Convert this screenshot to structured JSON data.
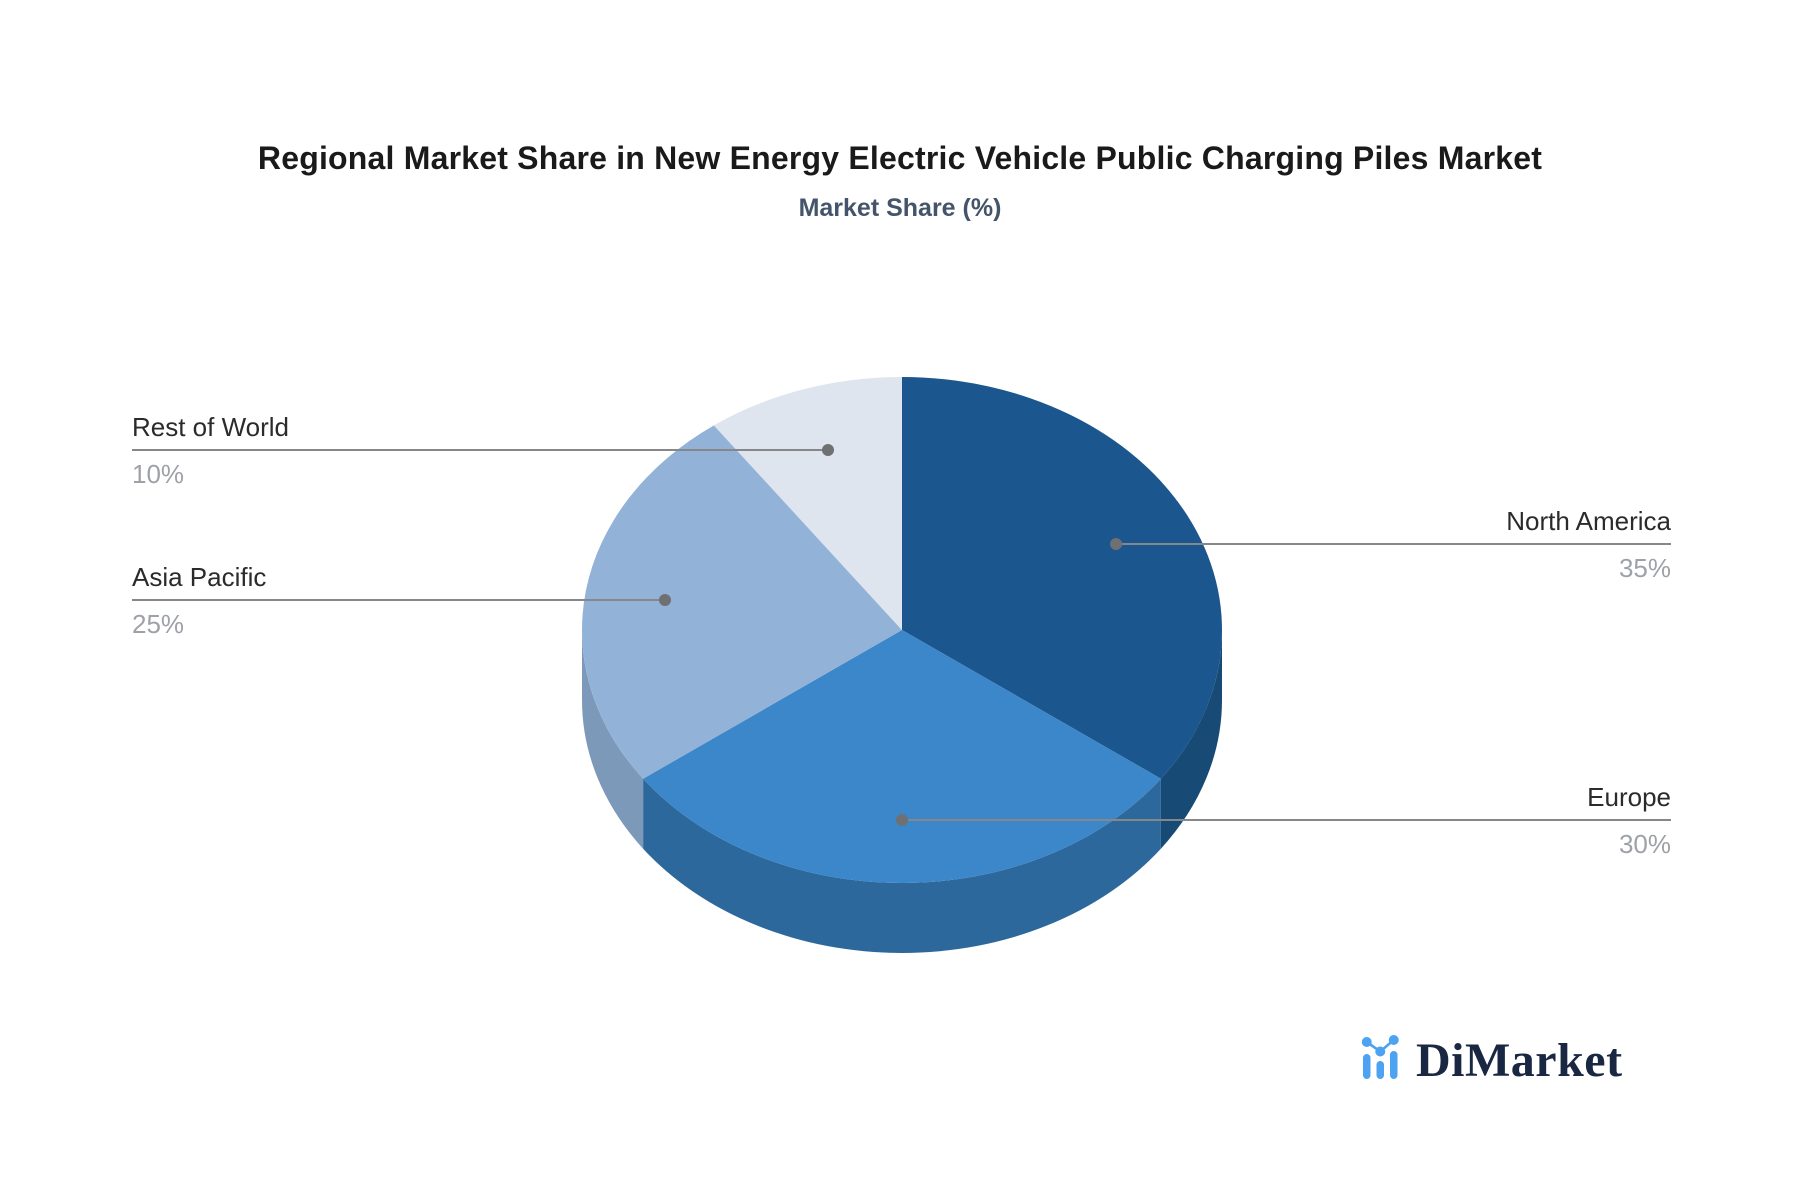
{
  "chart_data": {
    "type": "pie",
    "style": "3d",
    "title": "Regional Market Share in New Energy Electric Vehicle Public Charging Piles Market",
    "subtitle": "Market Share (%)",
    "unit": "%",
    "direction": "clockwise",
    "start_angle_deg": 0,
    "legend_position": "none",
    "slices": [
      {
        "label": "North America",
        "value": 35,
        "display": "35%",
        "color": "#1B578E",
        "side_color": "#174A75",
        "label_side": "right"
      },
      {
        "label": "Europe",
        "value": 30,
        "display": "30%",
        "color": "#3B87C9",
        "side_color": "#2D689C",
        "label_side": "right"
      },
      {
        "label": "Asia Pacific",
        "value": 25,
        "display": "25%",
        "color": "#92B2D8",
        "side_color": "#7D99B9",
        "label_side": "left"
      },
      {
        "label": "Rest of World",
        "value": 10,
        "display": "10%",
        "color": "#DFE5EF",
        "side_color": "#BCC7D6",
        "label_side": "left"
      }
    ],
    "leader_line_color": "#85878A",
    "leader_dot_color": "#6F7072",
    "label_name_color": "#2B2B2B",
    "label_value_color": "#9EA2A8"
  },
  "branding": {
    "logo_text": "DiMarket",
    "logo_color": "#1A2742",
    "icon_color": "#4DA3F2"
  }
}
